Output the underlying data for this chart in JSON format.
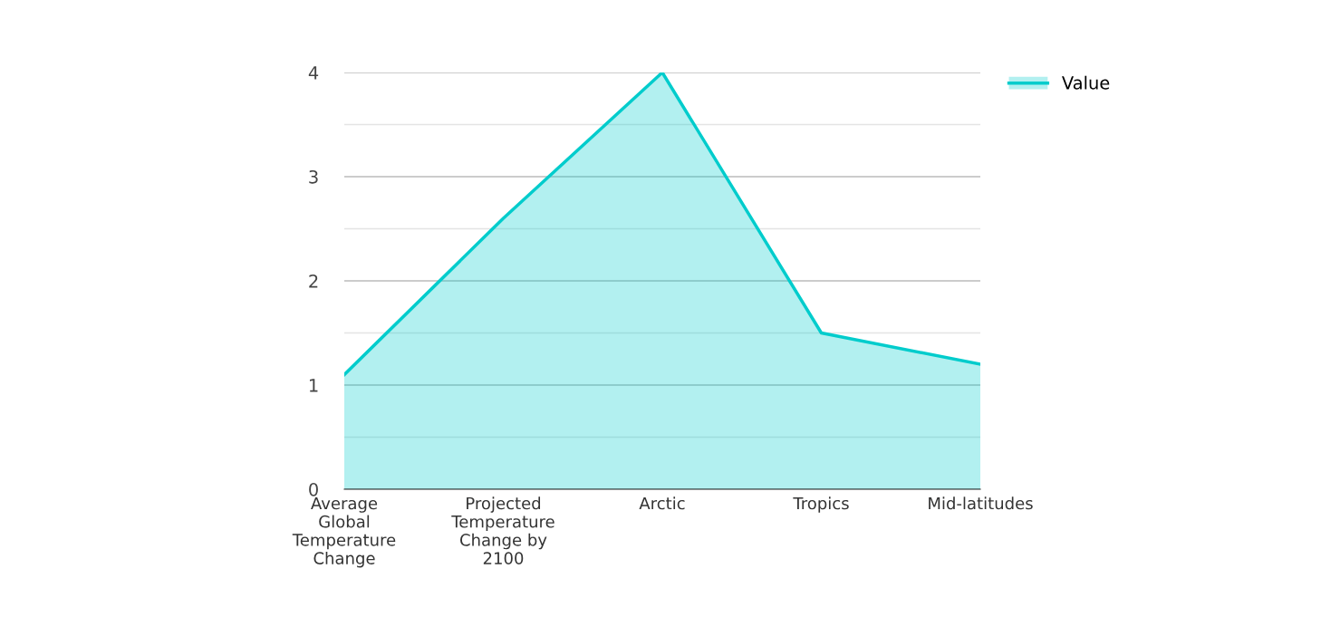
{
  "chart_data": {
    "type": "area",
    "categories": [
      "Average\nGlobal\nTemperature\nChange",
      "Projected\nTemperature\nChange by\n2100",
      "Arctic",
      "Tropics",
      "Mid-latitudes"
    ],
    "series": [
      {
        "name": "Value",
        "color": "#00cccc",
        "values": [
          1.1,
          2.6,
          4.0,
          1.5,
          1.2
        ]
      }
    ],
    "ylim": [
      0,
      4
    ],
    "yticks": [
      0,
      {
        "value": 0.5,
        "label": null
      },
      1,
      {
        "value": 1.5,
        "label": null
      },
      2,
      {
        "value": 2.5,
        "label": null
      },
      3,
      {
        "value": 3.5,
        "label": null
      },
      4
    ],
    "grid": "y",
    "legend": "top right"
  }
}
